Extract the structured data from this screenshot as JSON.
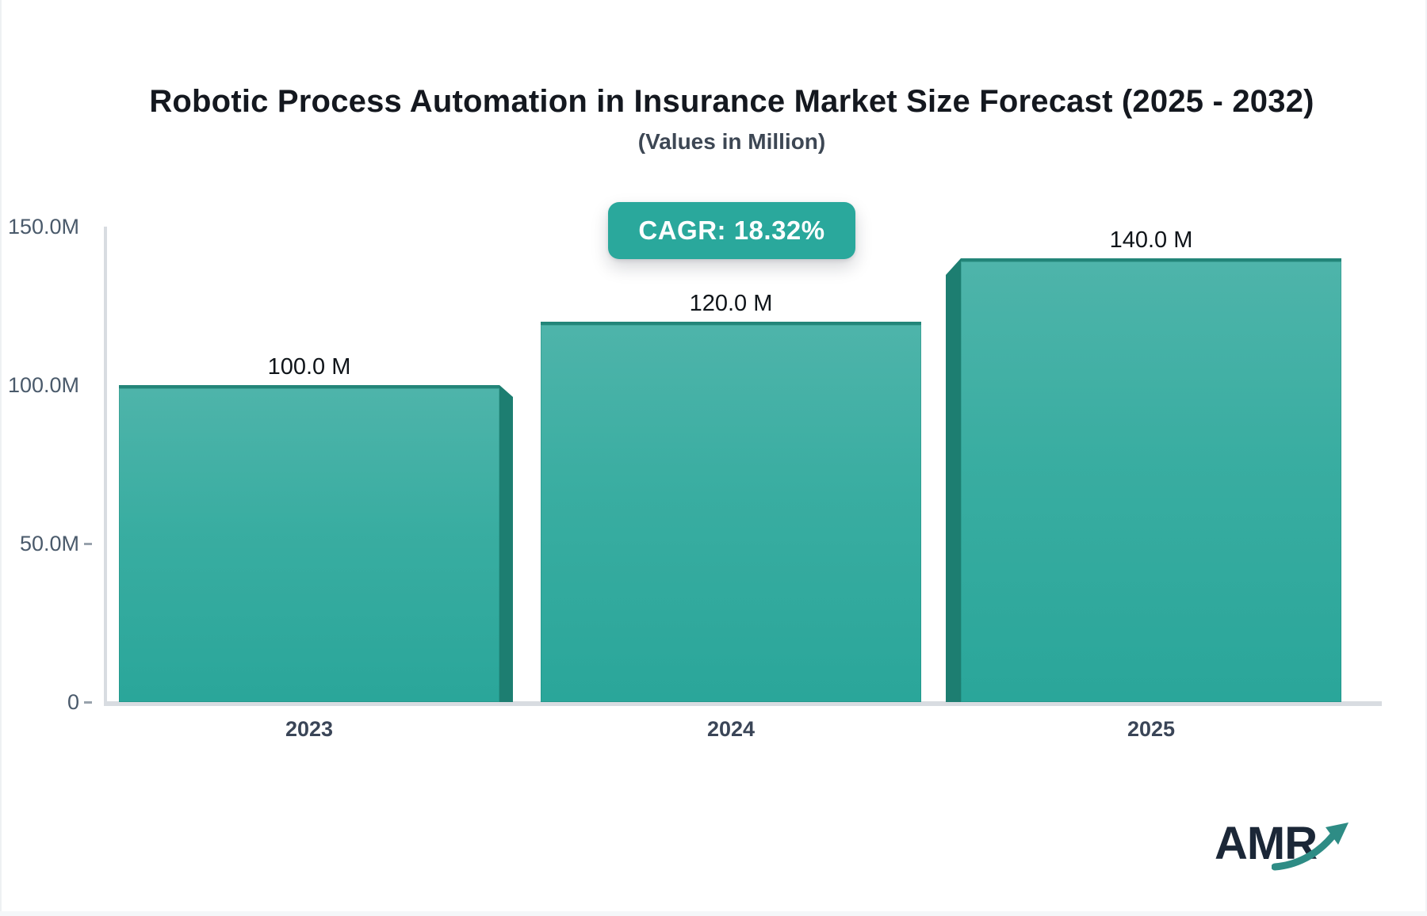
{
  "header": {
    "title": "Robotic Process Automation in Insurance Market Size Forecast (2025 - 2032)",
    "subtitle": "(Values in Million)"
  },
  "badge": {
    "label": "CAGR: 18.32%",
    "background": "#2aa89c",
    "text_color": "#ffffff"
  },
  "chart_data": {
    "type": "bar",
    "title": "Robotic Process Automation in Insurance Market Size Forecast (2025 - 2032)",
    "subtitle": "(Values in Million)",
    "cagr": "18.32%",
    "categories": [
      "2023",
      "2024",
      "2025"
    ],
    "values": [
      100.0,
      120.0,
      140.0
    ],
    "value_labels": [
      "100.0 M",
      "120.0 M",
      "140.0 M"
    ],
    "unit": "Million",
    "ylim": [
      0,
      150
    ],
    "y_ticks": [
      {
        "value": 150,
        "label": "150.0M",
        "dash": false
      },
      {
        "value": 100,
        "label": "100.0M",
        "dash": false
      },
      {
        "value": 50,
        "label": "50.0M",
        "dash": true
      },
      {
        "value": 0,
        "label": "0",
        "dash": true
      }
    ],
    "grid": false,
    "legend": "none",
    "effect": "3d-extruded-bars",
    "colors": {
      "bar_top": "#4eb4aa",
      "bar_bottom": "#2aa69a",
      "bar_side": "#1d7e71",
      "bar_top_border": "#238579",
      "axis": "#d8dce1",
      "tick_text": "#4a5a6b",
      "category_text": "#3a4557",
      "value_text": "#0f1419"
    }
  },
  "logo": {
    "text": "AMR",
    "text_color": "#1b2737",
    "arrow_color": "#2e8c85"
  }
}
